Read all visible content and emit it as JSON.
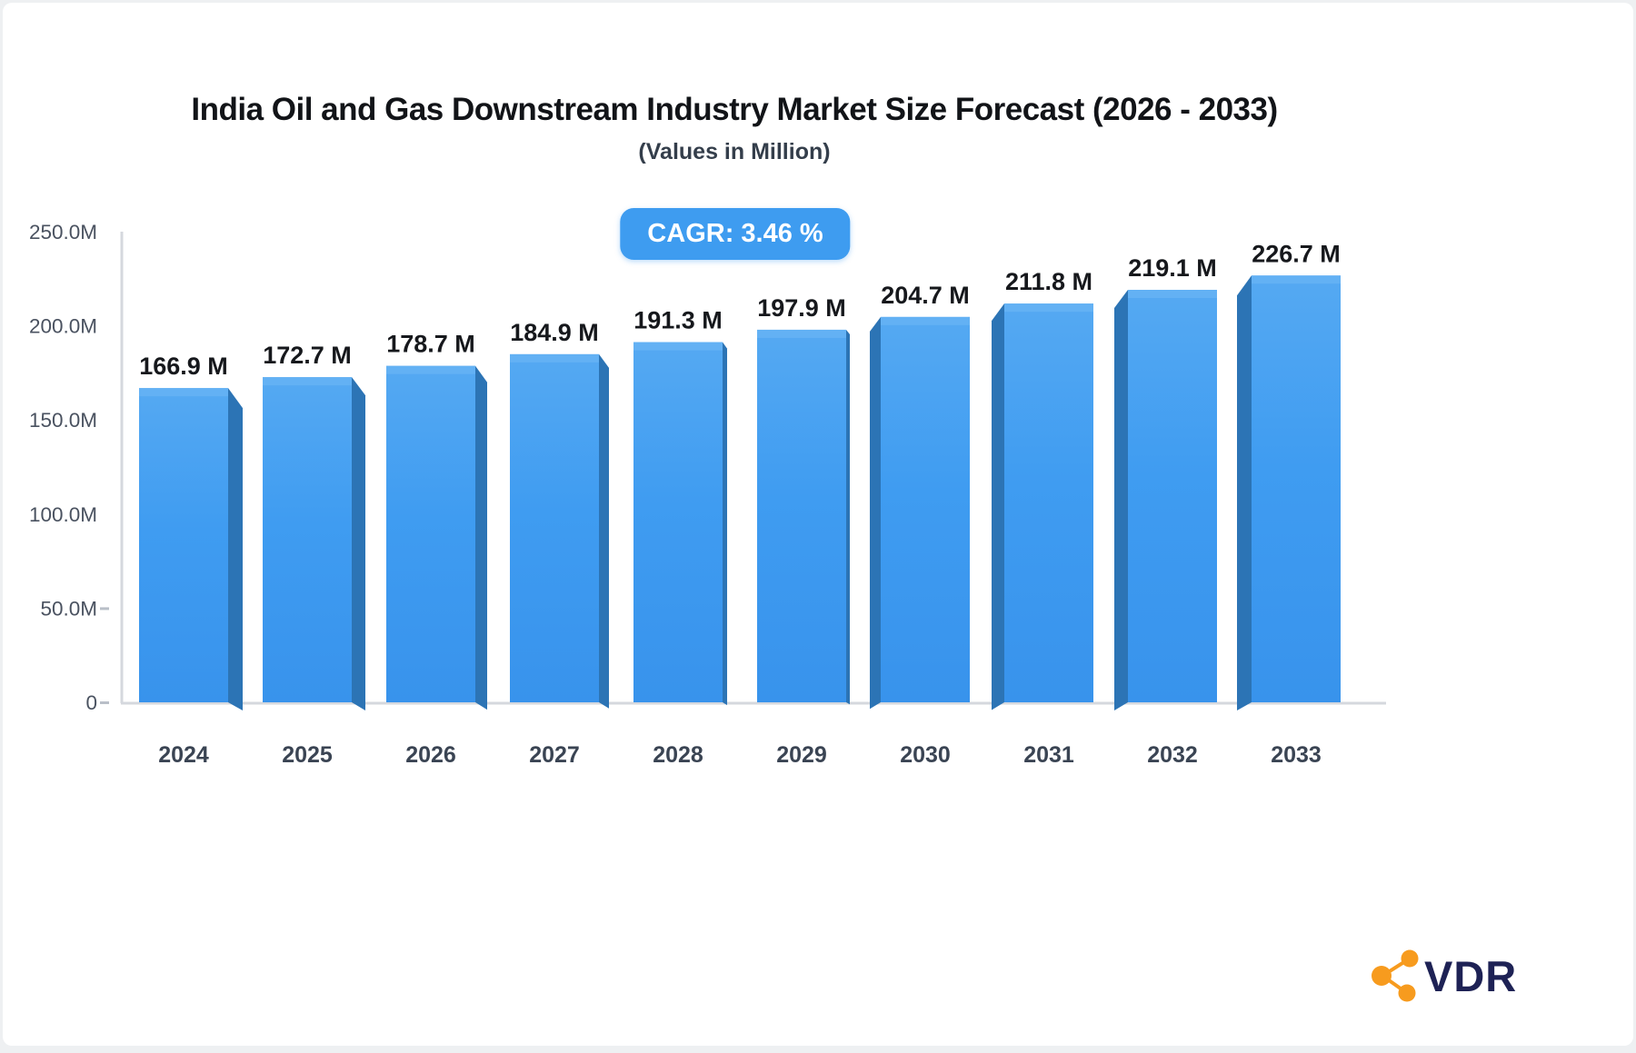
{
  "header": {
    "title": "India Oil and Gas Downstream Industry Market Size Forecast (2026 - 2033)",
    "subtitle": "(Values in Million)"
  },
  "badge": {
    "label": "CAGR: 3.46 %",
    "background": "#3E9CF0",
    "text_color": "#ffffff"
  },
  "chart_data": {
    "type": "bar",
    "title": "India Oil and Gas Downstream Industry Market Size Forecast (2026 - 2033)",
    "subtitle": "(Values in Million)",
    "categories": [
      "2024",
      "2025",
      "2026",
      "2027",
      "2028",
      "2029",
      "2030",
      "2031",
      "2032",
      "2033"
    ],
    "values": [
      166.9,
      172.7,
      178.7,
      184.9,
      191.3,
      197.9,
      204.7,
      211.8,
      219.1,
      226.7
    ],
    "value_labels": [
      "166.9 M",
      "172.7 M",
      "178.7 M",
      "184.9 M",
      "191.3 M",
      "197.9 M",
      "204.7 M",
      "211.8 M",
      "219.1 M",
      "226.7 M"
    ],
    "xlabel": "",
    "ylabel": "",
    "ylim": [
      0,
      250
    ],
    "yticks": [
      {
        "value": 250,
        "label": "250.0M"
      },
      {
        "value": 200,
        "label": "200.0M"
      },
      {
        "value": 150,
        "label": "150.0M"
      },
      {
        "value": 100,
        "label": "100.0M"
      },
      {
        "value": 50,
        "label": "50.0M"
      },
      {
        "value": 0,
        "label": "0"
      }
    ],
    "grid": false,
    "legend": "none",
    "style": "3d-perspective-bars",
    "colors": {
      "bar_front_top": "#55A9F2",
      "bar_front_mid": "#3F9CF1",
      "bar_front_bottom": "#3893EC",
      "bar_cap": "#63B1F4",
      "bar_side": "#2C74B5",
      "axis_line": "#D5D8DE",
      "tick_text": "#4A5260",
      "category_text": "#3A4453",
      "value_text": "#16181C"
    }
  },
  "logo": {
    "icon": "share-network-icon",
    "icon_color": "#F79B1E",
    "text": "VDR",
    "text_color": "#1E2255"
  }
}
